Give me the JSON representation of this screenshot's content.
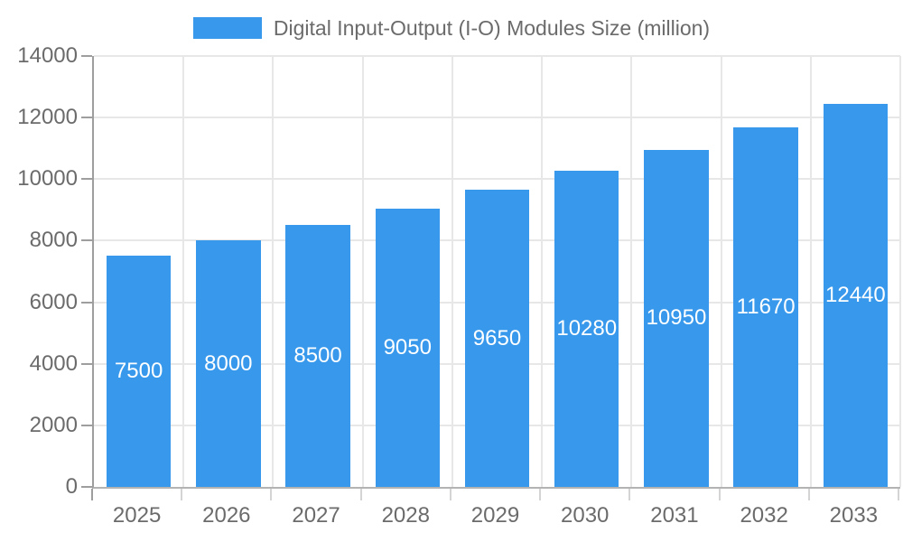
{
  "chart_data": {
    "type": "bar",
    "title": "Digital Input-Output (I-O) Modules Size (million)",
    "categories": [
      "2025",
      "2026",
      "2027",
      "2028",
      "2029",
      "2030",
      "2031",
      "2032",
      "2033"
    ],
    "values": [
      7500,
      8000,
      8500,
      9050,
      9650,
      10280,
      10950,
      11670,
      12440
    ],
    "xlabel": "",
    "ylabel": "",
    "ylim": [
      0,
      14000
    ],
    "y_ticks": [
      0,
      2000,
      4000,
      6000,
      8000,
      10000,
      12000,
      14000
    ],
    "grid": true,
    "legend_position": "top",
    "value_labels_position": "inside-center",
    "colors": {
      "bar": "#3899EC",
      "value_text": "#FFFFFF",
      "axis_text": "#6B6B6B",
      "gridline": "#E7E7E7",
      "axis_line": "#9E9E9E",
      "baseline": "#B3B3B3",
      "x_tick": "#D4D4D4",
      "background": "#FFFFFF"
    }
  }
}
